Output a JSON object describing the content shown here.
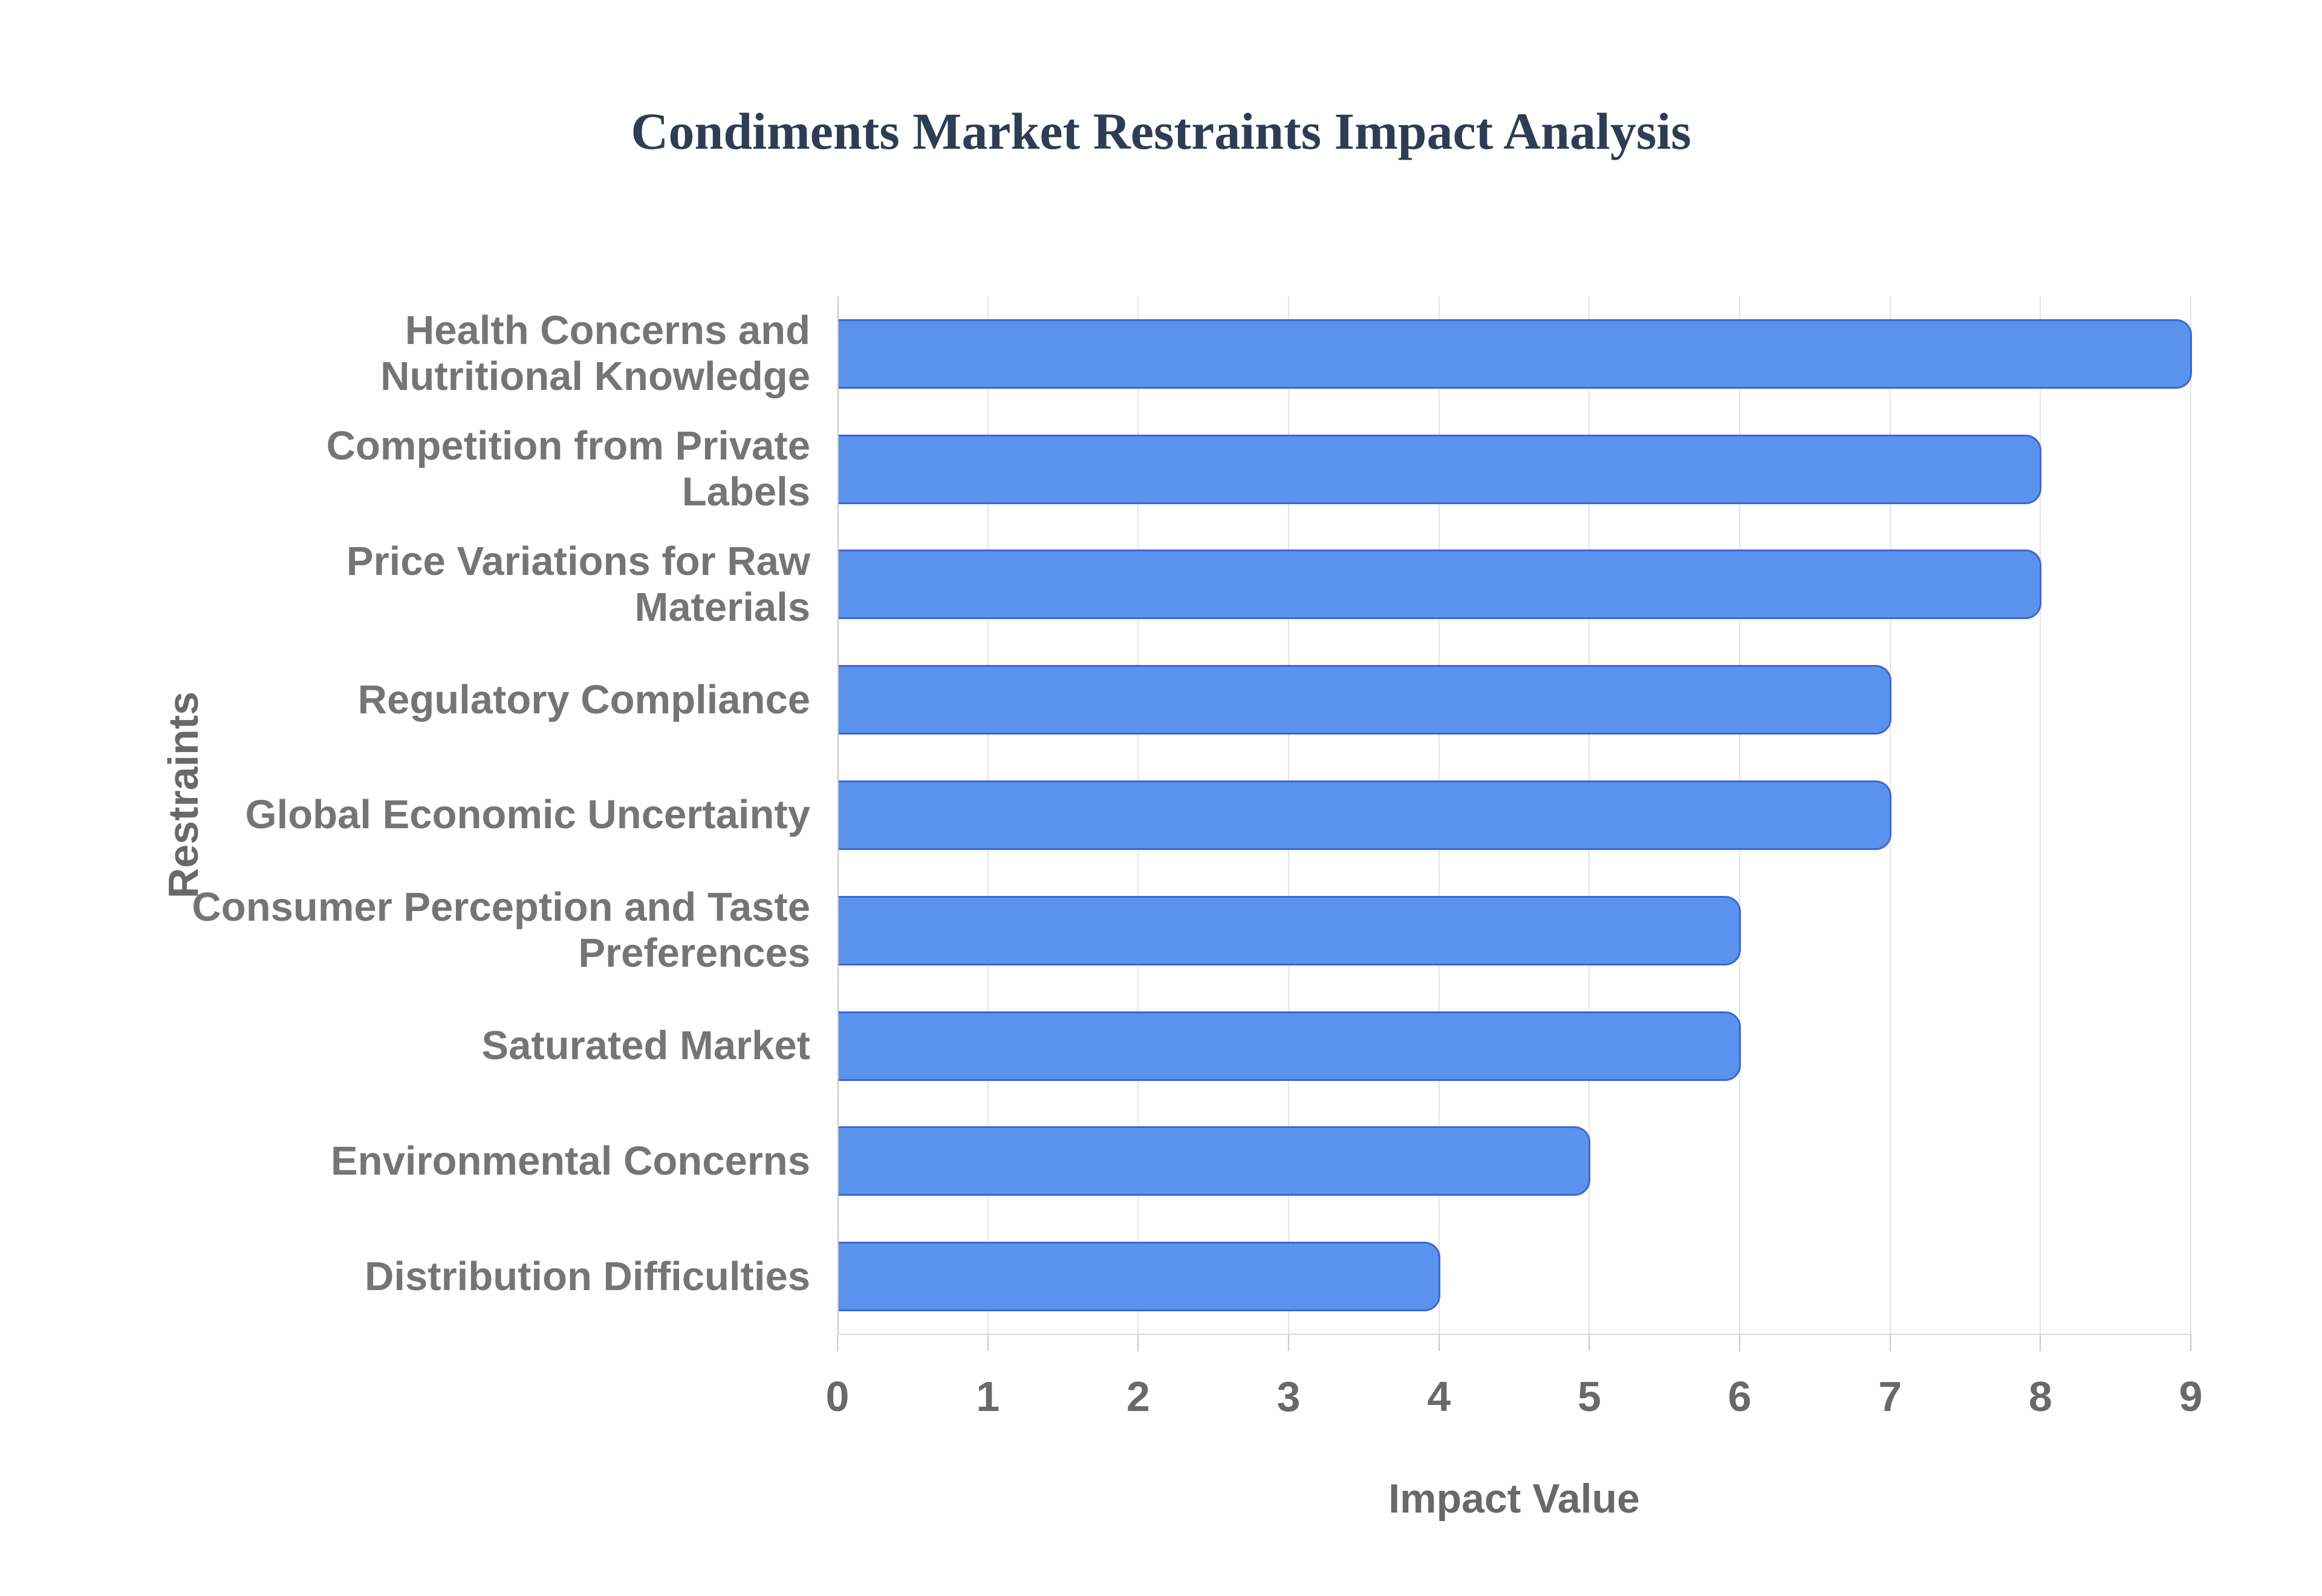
{
  "title": "Condiments Market Restraints Impact Analysis",
  "chart_data": {
    "type": "bar",
    "orientation": "horizontal",
    "title": "Condiments Market Restraints Impact Analysis",
    "xlabel": "Impact Value",
    "ylabel": "Restraints",
    "categories": [
      "Health Concerns and\nNutritional Knowledge",
      "Competition from Private\nLabels",
      "Price Variations for Raw\nMaterials",
      "Regulatory Compliance",
      "Global Economic Uncertainty",
      "Consumer Perception and Taste\nPreferences",
      "Saturated Market",
      "Environmental Concerns",
      "Distribution Difficulties"
    ],
    "values": [
      9,
      8,
      8,
      7,
      7,
      6,
      6,
      5,
      4
    ],
    "xlim": [
      0,
      9
    ],
    "x_ticks": [
      0,
      1,
      2,
      3,
      4,
      5,
      6,
      7,
      8,
      9
    ],
    "grid": true,
    "legend": false,
    "colors": {
      "bar_fill": "#5b92ee",
      "bar_border": "#3a67d2",
      "gridline": "#e4e4e4",
      "axis_line": "#c6c6c6",
      "tick_text": "#696969",
      "category_text": "#757575",
      "title_text": "#2e3d54",
      "background": "#ffffff"
    }
  }
}
